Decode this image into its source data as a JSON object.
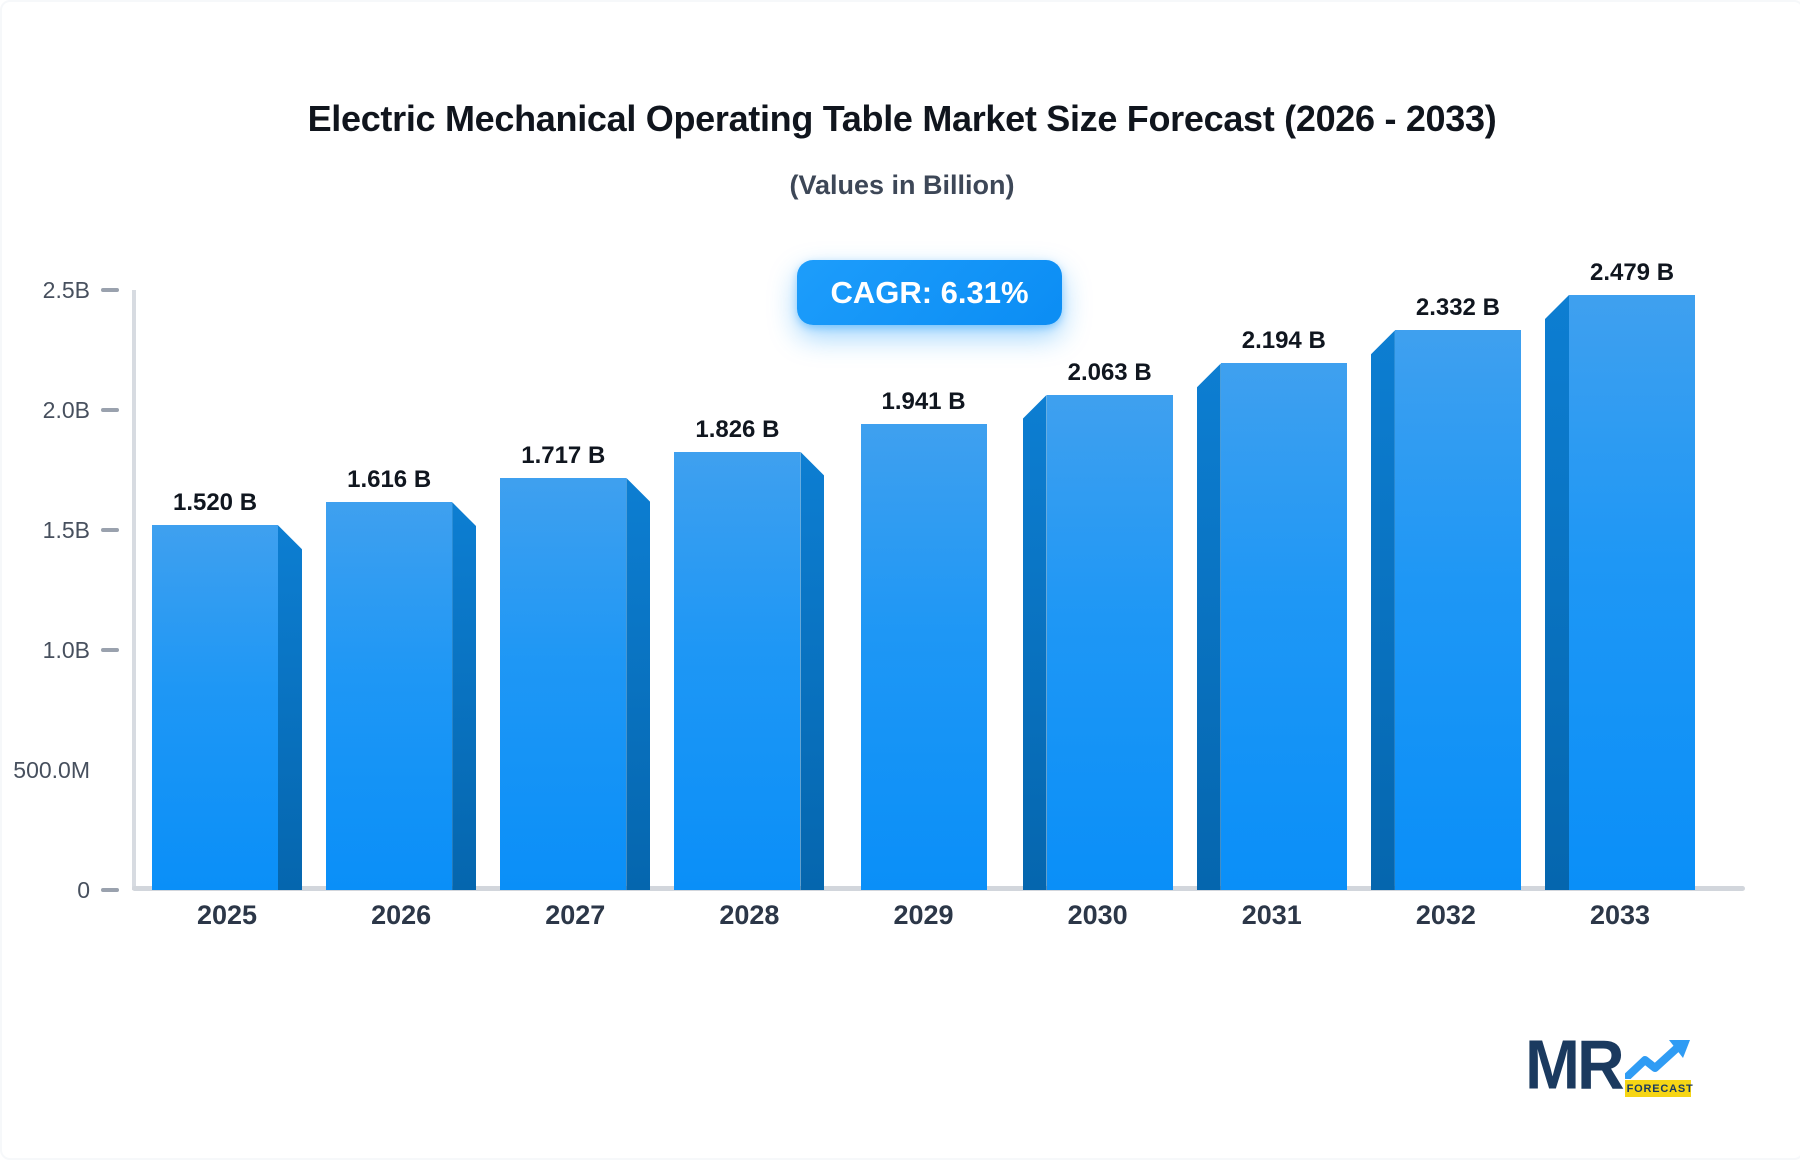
{
  "title": "Electric Mechanical Operating Table Market Size Forecast (2026 - 2033)",
  "subtitle": "(Values in Billion)",
  "cagr_badge": "CAGR: 6.31%",
  "chart_data": {
    "type": "bar",
    "title": "Electric Mechanical Operating Table Market Size Forecast (2026 - 2033)",
    "subtitle": "(Values in Billion)",
    "cagr": "6.31%",
    "unit": "billion",
    "categories": [
      "2025",
      "2026",
      "2027",
      "2028",
      "2029",
      "2030",
      "2031",
      "2032",
      "2033"
    ],
    "values": [
      1.52,
      1.616,
      1.717,
      1.826,
      1.941,
      2.063,
      2.194,
      2.332,
      2.479
    ],
    "value_labels": [
      "1.520 B",
      "1.616 B",
      "1.717 B",
      "1.826 B",
      "1.941 B",
      "2.063 B",
      "2.194 B",
      "2.332 B",
      "2.479 B"
    ],
    "xlabel": "",
    "ylabel": "",
    "ylim": [
      0,
      2.5
    ],
    "yticks": [
      {
        "label": "2.5B",
        "value": 2.5,
        "dash": true
      },
      {
        "label": "2.0B",
        "value": 2.0,
        "dash": true
      },
      {
        "label": "1.5B",
        "value": 1.5,
        "dash": true
      },
      {
        "label": "1.0B",
        "value": 1.0,
        "dash": true
      },
      {
        "label": "500.0M",
        "value": 0.5,
        "dash": false
      },
      {
        "label": "0",
        "value": 0,
        "dash": true
      }
    ],
    "grid": false,
    "legend": false
  },
  "colors": {
    "bar_face_top": "#3fa0ef",
    "bar_face_bottom": "#0a8ff8",
    "bar_side_top": "#0d7ed2",
    "bar_side_bottom": "#0566ae",
    "badge_bg": "#0f95fa",
    "axis_line": "#d7dbe1",
    "baseline": "#d2d6dc",
    "tick_dash": "#9aa2ae",
    "y_tick_text": "#47505e",
    "x_tick_text": "#2c3748",
    "value_text": "#10161f",
    "title_text": "#10151d",
    "subtitle_text": "#3d4757"
  },
  "logo": {
    "text": "MR",
    "tag": "FORECAST",
    "navy": "#1b3a5f",
    "blue": "#2f9cf4",
    "yellow": "#f6d515"
  }
}
